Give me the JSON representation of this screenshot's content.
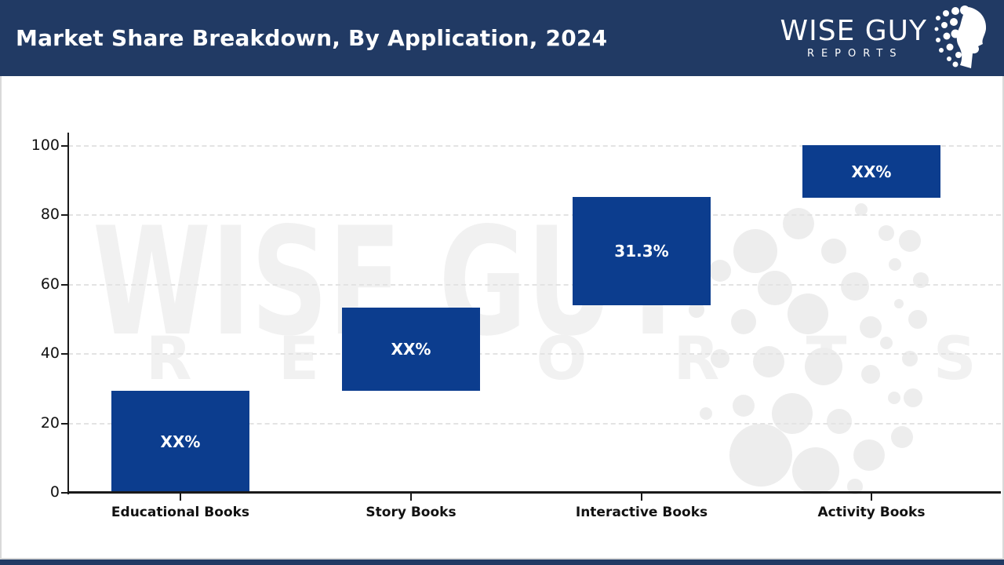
{
  "header": {
    "title": "Market Share Breakdown, By Application, 2024",
    "logo": {
      "line1": "WISE GUY",
      "line2": "REPORTS"
    }
  },
  "watermark": {
    "line1": "WISE GUY",
    "line2": "R E P O R T S"
  },
  "chart_data": {
    "type": "bar",
    "subtype": "floating-waterfall",
    "title": "Market Share Breakdown, By Application, 2024",
    "categories": [
      "Educational Books",
      "Story Books",
      "Interactive Books",
      "Activity Books"
    ],
    "bars": [
      {
        "category": "Educational Books",
        "from": 0,
        "to": 29.5,
        "label": "XX%"
      },
      {
        "category": "Story Books",
        "from": 29.5,
        "to": 53.5,
        "label": "XX%"
      },
      {
        "category": "Interactive Books",
        "from": 54.0,
        "to": 85.3,
        "label": "31.3%"
      },
      {
        "category": "Activity Books",
        "from": 85.0,
        "to": 100.2,
        "label": "XX%"
      }
    ],
    "yticks": [
      0,
      20,
      40,
      60,
      80,
      100
    ],
    "ylim": [
      0,
      104
    ],
    "xlabel": "",
    "ylabel": "",
    "grid": "horizontal-dashed",
    "legend": "none",
    "bar_color": "#0c3d8e",
    "label_color": "#ffffff"
  },
  "colors": {
    "header_bg": "#213a64",
    "footer_bg": "#213a64",
    "bar": "#0c3d8e",
    "axis": "#1a1a1a",
    "grid": "#e3e3e3",
    "watermark": "#f1f1f1",
    "frame": "#d9d9d9",
    "title_text": "#ffffff"
  }
}
